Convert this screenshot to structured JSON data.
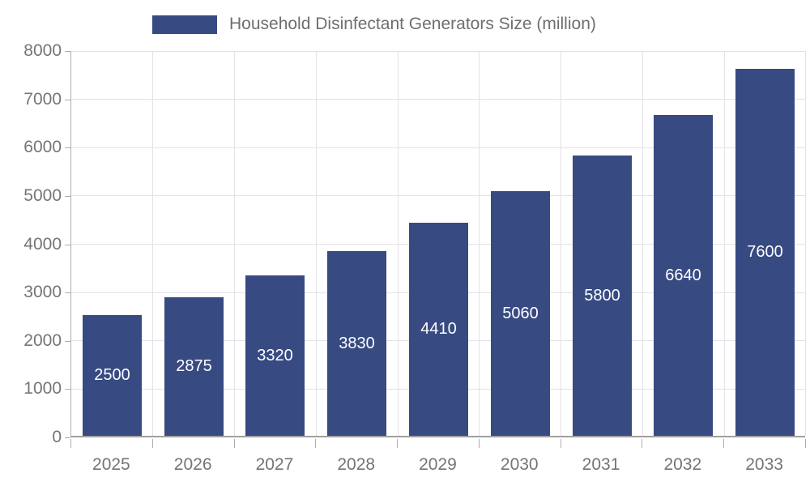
{
  "chart_data": {
    "type": "bar",
    "title": "Household Disinfectant Generators Size (million)",
    "categories": [
      "2025",
      "2026",
      "2027",
      "2028",
      "2029",
      "2030",
      "2031",
      "2032",
      "2033"
    ],
    "values": [
      2500,
      2875,
      3320,
      3830,
      4410,
      5060,
      5800,
      6640,
      7600
    ],
    "series": [
      {
        "name": "Household Disinfectant Generators Size (million)",
        "values": [
          2500,
          2875,
          3320,
          3830,
          4410,
          5060,
          5800,
          6640,
          7600
        ]
      }
    ],
    "xlabel": "",
    "ylabel": "",
    "ylim": [
      0,
      8000
    ],
    "yticks": [
      0,
      1000,
      2000,
      3000,
      4000,
      5000,
      6000,
      7000,
      8000
    ],
    "grid": "both",
    "legend_position": "top",
    "bar_labels_visible": true,
    "colors": {
      "bar": "#374A82",
      "bar_label": "#FFFFFF",
      "gridline": "#E2E2E8",
      "axis_line": "#ADADAD",
      "tick_label": "#757575",
      "legend_text": "#6E6E6E",
      "background": "#FFFFFF"
    }
  },
  "legend": {
    "label": "Household Disinfectant Generators Size (million)"
  }
}
